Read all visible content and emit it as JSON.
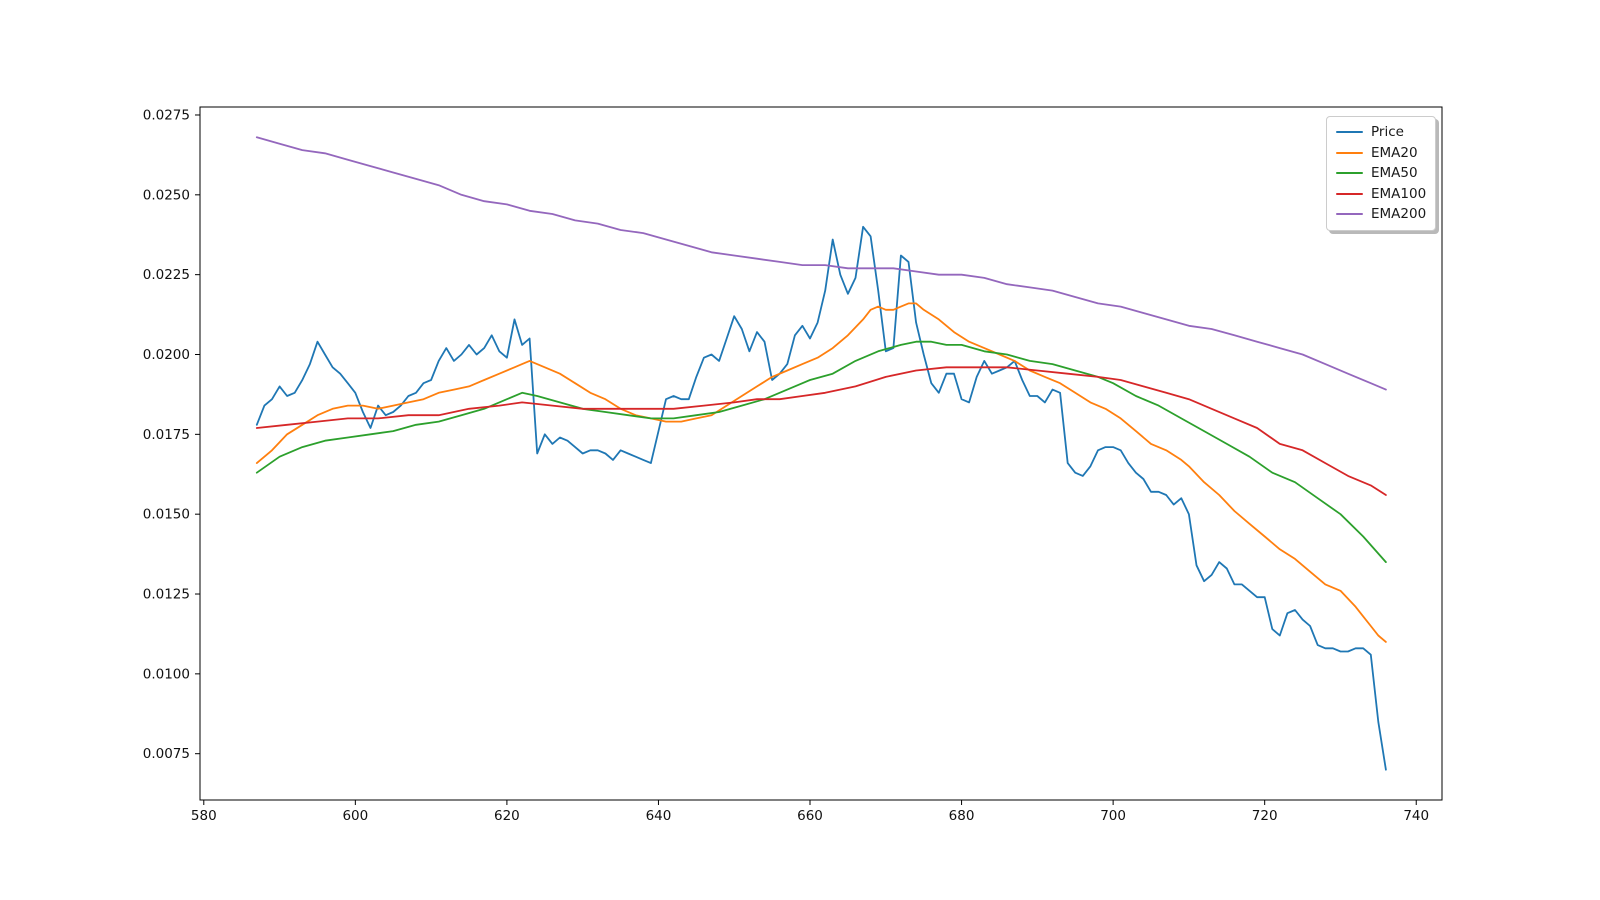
{
  "chart_data": {
    "type": "line",
    "title": "",
    "xlabel": "",
    "ylabel": "",
    "grid": false,
    "legend_position": "upper right",
    "xlim": [
      579.5,
      743.4
    ],
    "ylim": [
      0.00605,
      0.02775
    ],
    "x_ticks": [
      580,
      600,
      620,
      640,
      660,
      680,
      700,
      720,
      740
    ],
    "x_tick_labels": [
      "580",
      "600",
      "620",
      "640",
      "660",
      "680",
      "700",
      "720",
      "740"
    ],
    "y_ticks": [
      0.0075,
      0.01,
      0.0125,
      0.015,
      0.0175,
      0.02,
      0.0225,
      0.025,
      0.0275
    ],
    "y_tick_labels": [
      "0.0075",
      "0.0100",
      "0.0125",
      "0.0150",
      "0.0175",
      "0.0200",
      "0.0225",
      "0.0250",
      "0.0275"
    ],
    "series": [
      {
        "name": "Price",
        "color": "#1f77b4",
        "x_start": 587,
        "x_step": 1,
        "values": [
          0.0178,
          0.0184,
          0.0186,
          0.019,
          0.0187,
          0.0188,
          0.0192,
          0.0197,
          0.0204,
          0.02,
          0.0196,
          0.0194,
          0.0191,
          0.0188,
          0.0182,
          0.0177,
          0.0184,
          0.0181,
          0.0182,
          0.0184,
          0.0187,
          0.0188,
          0.0191,
          0.0192,
          0.0198,
          0.0202,
          0.0198,
          0.02,
          0.0203,
          0.02,
          0.0202,
          0.0206,
          0.0201,
          0.0199,
          0.0211,
          0.0203,
          0.0205,
          0.0169,
          0.0175,
          0.0172,
          0.0174,
          0.0173,
          0.0171,
          0.0169,
          0.017,
          0.017,
          0.0169,
          0.0167,
          0.017,
          0.0169,
          0.0168,
          0.0167,
          0.0166,
          0.0176,
          0.0186,
          0.0187,
          0.0186,
          0.0186,
          0.0193,
          0.0199,
          0.02,
          0.0198,
          0.0205,
          0.0212,
          0.0208,
          0.0201,
          0.0207,
          0.0204,
          0.0192,
          0.0194,
          0.0197,
          0.0206,
          0.0209,
          0.0205,
          0.021,
          0.022,
          0.0236,
          0.0225,
          0.0219,
          0.0224,
          0.024,
          0.0237,
          0.022,
          0.0201,
          0.0202,
          0.0231,
          0.0229,
          0.021,
          0.02,
          0.0191,
          0.0188,
          0.0194,
          0.0194,
          0.0186,
          0.0185,
          0.0193,
          0.0198,
          0.0194,
          0.0195,
          0.0196,
          0.0198,
          0.0192,
          0.0187,
          0.0187,
          0.0185,
          0.0189,
          0.0188,
          0.0166,
          0.0163,
          0.0162,
          0.0165,
          0.017,
          0.0171,
          0.0171,
          0.017,
          0.0166,
          0.0163,
          0.0161,
          0.0157,
          0.0157,
          0.0156,
          0.0153,
          0.0155,
          0.015,
          0.0134,
          0.0129,
          0.0131,
          0.0135,
          0.0133,
          0.0128,
          0.0128,
          0.0126,
          0.0124,
          0.0124,
          0.0114,
          0.0112,
          0.0119,
          0.012,
          0.0117,
          0.0115,
          0.0109,
          0.0108,
          0.0108,
          0.0107,
          0.0107,
          0.0108,
          0.0108,
          0.0106,
          0.0085,
          0.007
        ]
      },
      {
        "name": "EMA20",
        "color": "#ff7f0e",
        "x": [
          587,
          589,
          591,
          593,
          595,
          597,
          599,
          601,
          603,
          605,
          607,
          609,
          611,
          613,
          615,
          617,
          619,
          621,
          622,
          623,
          625,
          627,
          629,
          631,
          633,
          635,
          637,
          639,
          641,
          643,
          645,
          647,
          649,
          651,
          653,
          655,
          657,
          659,
          661,
          663,
          665,
          667,
          668,
          669,
          670,
          671,
          672,
          673,
          674,
          675,
          677,
          679,
          681,
          683,
          685,
          687,
          689,
          691,
          693,
          695,
          697,
          699,
          701,
          703,
          705,
          707,
          709,
          710,
          712,
          714,
          716,
          718,
          720,
          722,
          724,
          726,
          728,
          730,
          732,
          733,
          734,
          735,
          736
        ],
        "y": [
          0.0166,
          0.017,
          0.0175,
          0.0178,
          0.0181,
          0.0183,
          0.0184,
          0.0184,
          0.0183,
          0.0184,
          0.0185,
          0.0186,
          0.0188,
          0.0189,
          0.019,
          0.0192,
          0.0194,
          0.0196,
          0.0197,
          0.0198,
          0.0196,
          0.0194,
          0.0191,
          0.0188,
          0.0186,
          0.0183,
          0.0181,
          0.018,
          0.0179,
          0.0179,
          0.018,
          0.0181,
          0.0184,
          0.0187,
          0.019,
          0.0193,
          0.0195,
          0.0197,
          0.0199,
          0.0202,
          0.0206,
          0.0211,
          0.0214,
          0.0215,
          0.0214,
          0.0214,
          0.0215,
          0.0216,
          0.0216,
          0.0214,
          0.0211,
          0.0207,
          0.0204,
          0.0202,
          0.02,
          0.0198,
          0.0195,
          0.0193,
          0.0191,
          0.0188,
          0.0185,
          0.0183,
          0.018,
          0.0176,
          0.0172,
          0.017,
          0.0167,
          0.0165,
          0.016,
          0.0156,
          0.0151,
          0.0147,
          0.0143,
          0.0139,
          0.0136,
          0.0132,
          0.0128,
          0.0126,
          0.0121,
          0.0118,
          0.0115,
          0.0112,
          0.011
        ]
      },
      {
        "name": "EMA50",
        "color": "#2ca02c",
        "x": [
          587,
          590,
          593,
          596,
          599,
          602,
          605,
          608,
          611,
          614,
          617,
          620,
          622,
          624,
          627,
          630,
          633,
          636,
          639,
          642,
          645,
          648,
          651,
          654,
          657,
          660,
          663,
          666,
          669,
          672,
          674,
          676,
          678,
          680,
          683,
          686,
          689,
          692,
          695,
          698,
          700,
          703,
          706,
          709,
          712,
          715,
          718,
          721,
          724,
          727,
          730,
          733,
          736
        ],
        "y": [
          0.0163,
          0.0168,
          0.0171,
          0.0173,
          0.0174,
          0.0175,
          0.0176,
          0.0178,
          0.0179,
          0.0181,
          0.0183,
          0.0186,
          0.0188,
          0.0187,
          0.0185,
          0.0183,
          0.0182,
          0.0181,
          0.018,
          0.018,
          0.0181,
          0.0182,
          0.0184,
          0.0186,
          0.0189,
          0.0192,
          0.0194,
          0.0198,
          0.0201,
          0.0203,
          0.0204,
          0.0204,
          0.0203,
          0.0203,
          0.0201,
          0.02,
          0.0198,
          0.0197,
          0.0195,
          0.0193,
          0.0191,
          0.0187,
          0.0184,
          0.018,
          0.0176,
          0.0172,
          0.0168,
          0.0163,
          0.016,
          0.0155,
          0.015,
          0.0143,
          0.0135
        ]
      },
      {
        "name": "EMA100",
        "color": "#d62728",
        "x": [
          587,
          591,
          595,
          599,
          603,
          607,
          611,
          615,
          619,
          622,
          626,
          630,
          634,
          638,
          642,
          646,
          650,
          653,
          656,
          659,
          662,
          666,
          670,
          674,
          678,
          682,
          686,
          690,
          694,
          698,
          701,
          704,
          707,
          710,
          713,
          716,
          719,
          722,
          725,
          728,
          731,
          734,
          736
        ],
        "y": [
          0.0177,
          0.0178,
          0.0179,
          0.018,
          0.018,
          0.0181,
          0.0181,
          0.0183,
          0.0184,
          0.0185,
          0.0184,
          0.0183,
          0.0183,
          0.0183,
          0.0183,
          0.0184,
          0.0185,
          0.0186,
          0.0186,
          0.0187,
          0.0188,
          0.019,
          0.0193,
          0.0195,
          0.0196,
          0.0196,
          0.0196,
          0.0195,
          0.0194,
          0.0193,
          0.0192,
          0.019,
          0.0188,
          0.0186,
          0.0183,
          0.018,
          0.0177,
          0.0172,
          0.017,
          0.0166,
          0.0162,
          0.0159,
          0.0156
        ]
      },
      {
        "name": "EMA200",
        "color": "#9467bd",
        "x": [
          587,
          590,
          593,
          596,
          599,
          602,
          605,
          608,
          611,
          614,
          617,
          620,
          623,
          626,
          629,
          632,
          635,
          638,
          641,
          644,
          647,
          650,
          653,
          656,
          659,
          662,
          665,
          668,
          671,
          674,
          677,
          680,
          683,
          686,
          689,
          692,
          695,
          698,
          701,
          704,
          707,
          710,
          713,
          716,
          719,
          722,
          725,
          728,
          731,
          734,
          736
        ],
        "y": [
          0.0268,
          0.0266,
          0.0264,
          0.0263,
          0.0261,
          0.0259,
          0.0257,
          0.0255,
          0.0253,
          0.025,
          0.0248,
          0.0247,
          0.0245,
          0.0244,
          0.0242,
          0.0241,
          0.0239,
          0.0238,
          0.0236,
          0.0234,
          0.0232,
          0.0231,
          0.023,
          0.0229,
          0.0228,
          0.0228,
          0.0227,
          0.0227,
          0.0227,
          0.0226,
          0.0225,
          0.0225,
          0.0224,
          0.0222,
          0.0221,
          0.022,
          0.0218,
          0.0216,
          0.0215,
          0.0213,
          0.0211,
          0.0209,
          0.0208,
          0.0206,
          0.0204,
          0.0202,
          0.02,
          0.0197,
          0.0194,
          0.0191,
          0.0189
        ]
      }
    ],
    "legend": {
      "entries": [
        "Price",
        "EMA20",
        "EMA50",
        "EMA100",
        "EMA200"
      ]
    }
  }
}
